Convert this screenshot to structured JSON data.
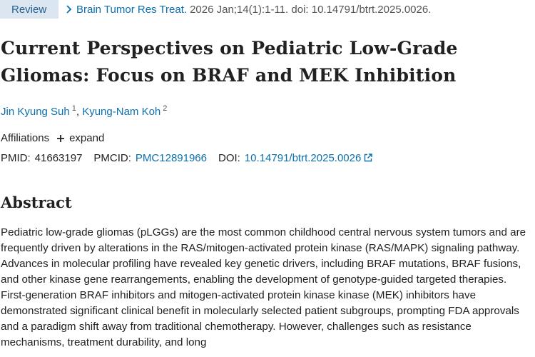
{
  "article": {
    "type_badge": "Review",
    "citation": {
      "journal": "Brain Tumor Res Treat.",
      "rest": "2026 Jan;14(1):1-11. doi: 10.14791/btrt.2025.0026."
    },
    "title": "Current Perspectives on Pediatric Low-Grade Gliomas: Focus on BRAF and MEK Inhibition",
    "authors": [
      {
        "name": "Jin Kyung Suh",
        "affiliation": "1"
      },
      {
        "name": "Kyung-Nam Koh",
        "affiliation": "2"
      }
    ],
    "author_separator": ",",
    "affiliations": {
      "label": "Affiliations",
      "expand_label": "expand"
    },
    "ids": {
      "pmid_label": "PMID:",
      "pmid": "41663197",
      "pmcid_label": "PMCID:",
      "pmcid": "PMC12891966",
      "doi_label": "DOI:",
      "doi": "10.14791/btrt.2025.0026"
    }
  },
  "abstract": {
    "heading": "Abstract",
    "text": "Pediatric low-grade gliomas (pLGGs) are the most common childhood central nervous system tumors and are frequently driven by alterations in the RAS/mitogen-activated protein kinase (RAS/MAPK) signaling pathway. Advances in molecular profiling have revealed key genetic drivers, including BRAF mutations, BRAF fusions, and other kinase gene rearrangements, enabling the development of genotype-guided targeted therapies. First-generation BRAF inhibitors and mitogen-activated protein kinase kinase (MEK) inhibitors have demonstrated significant clinical benefit in molecularly selected patient subgroups, prompting FDA approvals and a paradigm shift away from traditional chemotherapy. However, challenges such as resistance mechanisms, treatment durability, and long"
  },
  "icons": {
    "citation_arrow": "chevron-right-icon",
    "expand": "plus-icon",
    "doi_link": "external-link-icon"
  },
  "colors": {
    "link": "#0b6fae",
    "badge_bg": "#dbe6f1",
    "badge_text": "#1f5e93",
    "text": "#212121",
    "muted": "#555555"
  }
}
